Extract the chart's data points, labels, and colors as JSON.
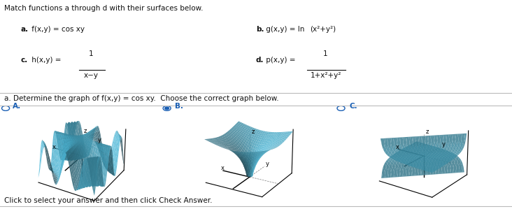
{
  "title_text": "Match functions a through d with their surfaces below.",
  "question_text": "a. Determine the graph of f(x,y) = cos xy.  Choose the correct graph below.",
  "label_A": "A.",
  "label_B": "B.",
  "label_C": "C.",
  "bottom_text": "Click to select your answer and then click Check Answer.",
  "surface_color": "#4db8d8",
  "surface_alpha": 0.82,
  "radio_color": "#1a5fb4",
  "text_color": "#222222",
  "bold_color": "#111111",
  "func_a_label": "a.",
  "func_a_text": " f(x,y) = cos xy",
  "func_b_label": "b.",
  "func_b_text": " g(x,y) = ln ",
  "func_b_sup": "(x²+y²)",
  "func_c_label": "c.",
  "func_c_text": " h(x,y) = ",
  "func_c_num": "1",
  "func_c_den": "x−y",
  "func_d_label": "d.",
  "func_d_text": " p(x,y) = ",
  "func_d_num": "1",
  "func_d_den": "1+x²+y²"
}
